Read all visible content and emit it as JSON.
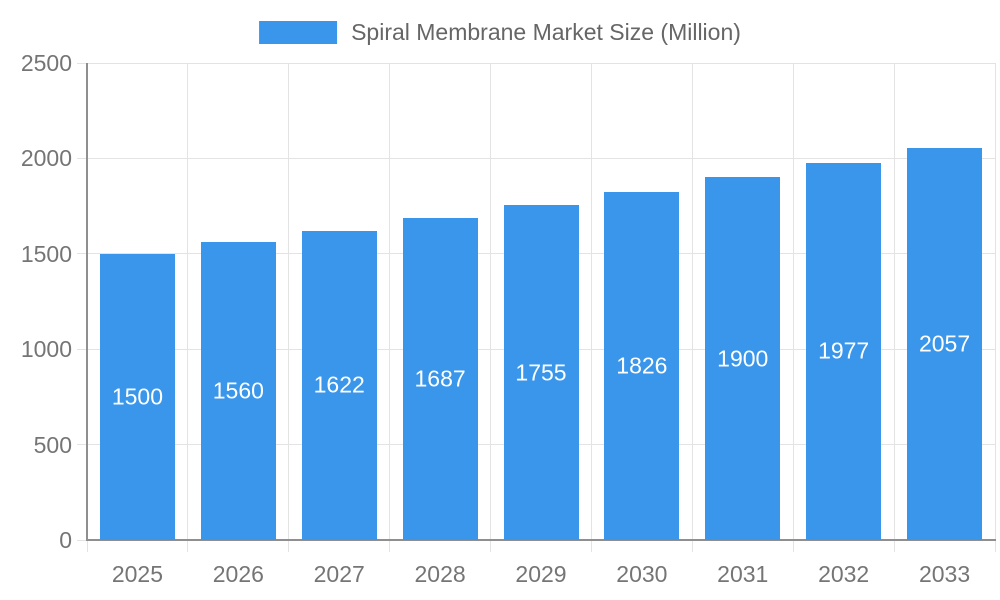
{
  "colors": {
    "bar": "#3996eb",
    "grid": "#e3e3e3",
    "tick": "#e3e3e3",
    "axis_line": "#8f8f8f",
    "axis_text": "#757575",
    "legend_text": "#666666",
    "bar_label": "#ffffff",
    "background": "#ffffff"
  },
  "legend": {
    "label": "Spiral Membrane Market Size (Million)"
  },
  "chart_data": {
    "type": "bar",
    "title": "Spiral Membrane Market Size (Million)",
    "categories": [
      "2025",
      "2026",
      "2027",
      "2028",
      "2029",
      "2030",
      "2031",
      "2032",
      "2033"
    ],
    "values": [
      1500,
      1560,
      1622,
      1687,
      1755,
      1826,
      1900,
      1977,
      2057
    ],
    "bar_labels": [
      "1500",
      "1560",
      "1622",
      "1687",
      "1755",
      "1826",
      "1900",
      "1977",
      "2057"
    ],
    "xlabel": "",
    "ylabel": "",
    "ylim": [
      0,
      2500
    ],
    "yticks": [
      0,
      500,
      1000,
      1500,
      2000,
      2500
    ],
    "ytick_labels": [
      "0",
      "500",
      "1000",
      "1500",
      "2000",
      "2500"
    ],
    "grid": true,
    "legend_position": "top",
    "bar_label_position": "center"
  }
}
